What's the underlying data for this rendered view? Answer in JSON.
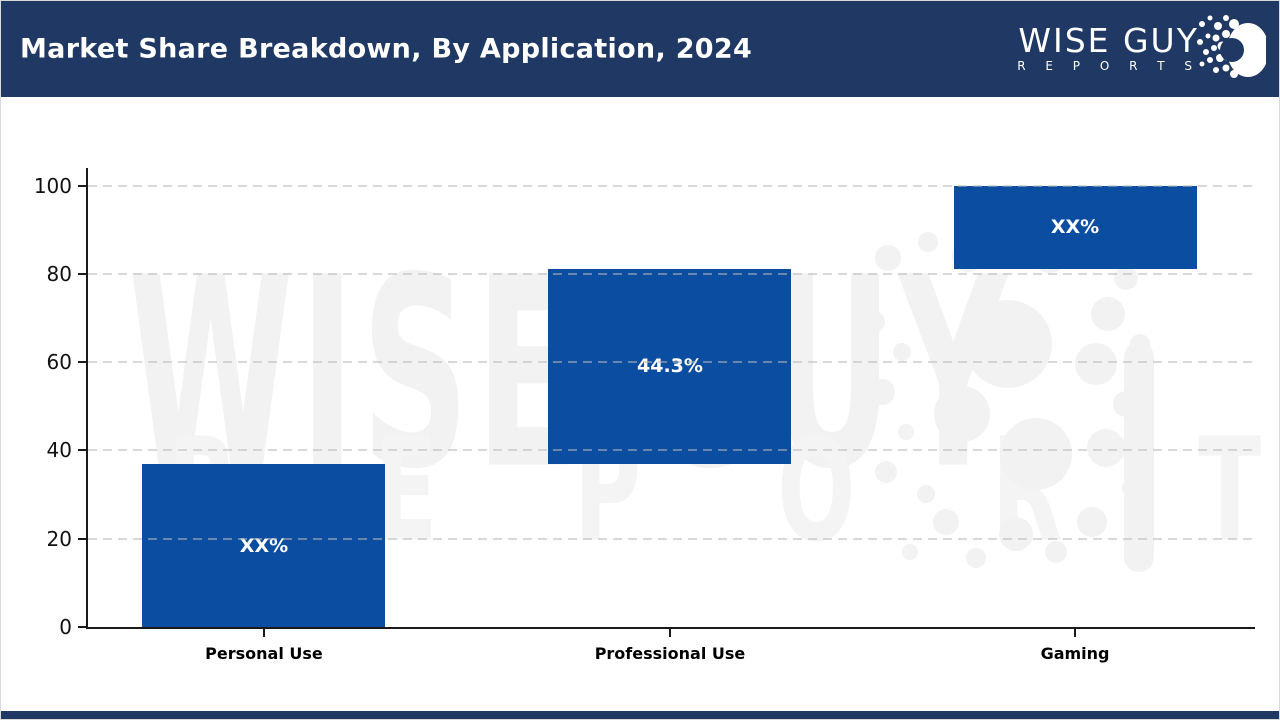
{
  "header": {
    "title": "Market Share Breakdown, By Application, 2024",
    "bg_color": "#1f3864",
    "logo": {
      "line1": "WISE GUY",
      "line2": "R E P O R T S"
    }
  },
  "watermark": {
    "line1": "WISE GUY",
    "line2": "R E P O R T S"
  },
  "chart_data": {
    "type": "bar",
    "subtype": "floating-waterfall",
    "title": "Market Share Breakdown, By Application, 2024",
    "categories": [
      "Personal Use",
      "Professional Use",
      "Gaming"
    ],
    "segments": [
      {
        "category": "Personal Use",
        "start": 0,
        "end": 36.9,
        "label": "XX%"
      },
      {
        "category": "Professional Use",
        "start": 36.9,
        "end": 81.2,
        "label": "44.3%"
      },
      {
        "category": "Gaming",
        "start": 81.2,
        "end": 100,
        "label": "XX%"
      }
    ],
    "values_pct": [
      36.9,
      44.3,
      18.8
    ],
    "y_ticks": [
      0,
      20,
      40,
      60,
      80,
      100
    ],
    "ylim": [
      0,
      104
    ],
    "xlabel": "",
    "ylabel": "",
    "grid": "horizontal-dashed-over-bars",
    "legend": "none",
    "bar_color": "#0b4da1",
    "bar_label_color": "#ffffff",
    "gridline_color": "#cccccc",
    "axis_color": "#1a1a1a"
  }
}
